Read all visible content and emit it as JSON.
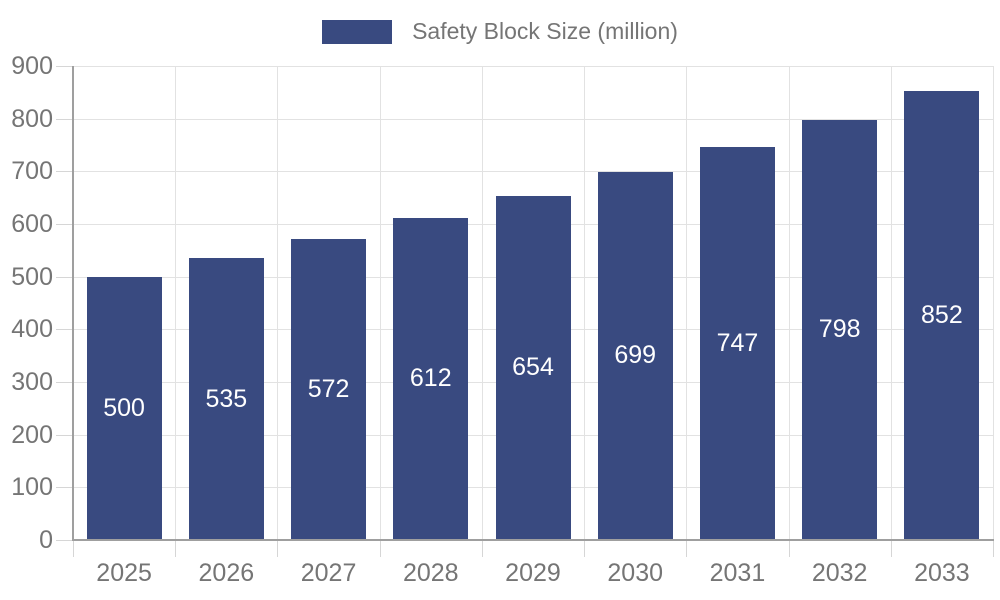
{
  "chart_data": {
    "type": "bar",
    "title": "Safety Block Size (million)",
    "legend_entries": [
      "Safety Block Size (million)"
    ],
    "legend_position": "top-center",
    "categories": [
      "2025",
      "2026",
      "2027",
      "2028",
      "2029",
      "2030",
      "2031",
      "2032",
      "2033"
    ],
    "series": [
      {
        "name": "Safety Block Size (million)",
        "values": [
          500,
          535,
          572,
          612,
          654,
          699,
          747,
          798,
          852
        ]
      }
    ],
    "values": [
      500,
      535,
      572,
      612,
      654,
      699,
      747,
      798,
      852
    ],
    "bar_value_labels": [
      "500",
      "535",
      "572",
      "612",
      "654",
      "699",
      "747",
      "798",
      "852"
    ],
    "xlabel": "",
    "ylabel": "",
    "ylim": [
      0,
      900
    ],
    "ytick_interval": 100,
    "yticks": [
      0,
      100,
      200,
      300,
      400,
      500,
      600,
      700,
      800,
      900
    ],
    "grid": true,
    "colors": {
      "bar": "#394a80",
      "bar_label_text": "#ffffff",
      "axis_text": "#757575",
      "grid_line": "#e2e2e2",
      "axis_line": "#9f9f9f",
      "tick_line": "#d6d6d6",
      "background": "#ffffff"
    }
  }
}
